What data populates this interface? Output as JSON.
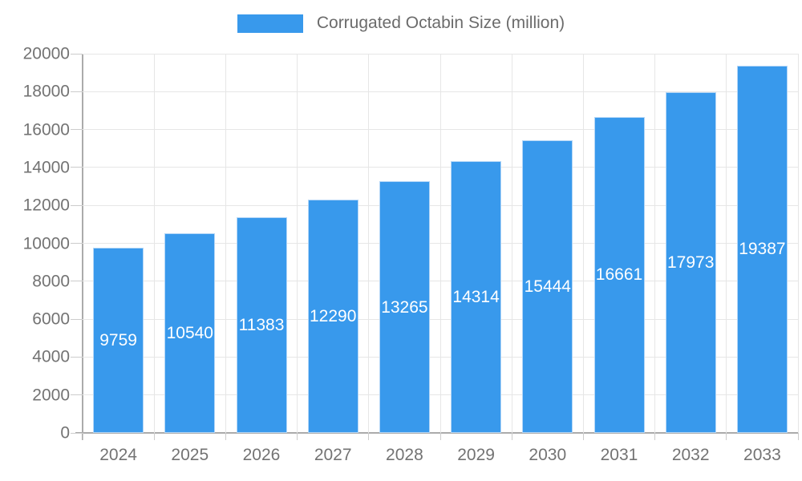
{
  "legend": {
    "label": "Corrugated Octabin Size (million)"
  },
  "chart_data": {
    "type": "bar",
    "title": "Corrugated Octabin Size (million)",
    "categories": [
      "2024",
      "2025",
      "2026",
      "2027",
      "2028",
      "2029",
      "2030",
      "2031",
      "2032",
      "2033"
    ],
    "values": [
      9759,
      10540,
      11383,
      12290,
      13265,
      14314,
      15444,
      16661,
      17973,
      19387
    ],
    "xlabel": "",
    "ylabel": "",
    "ylim": [
      0,
      20000
    ],
    "ytick_step": 2000,
    "grid": true,
    "legend_position": "top",
    "bar_labels_inside": true,
    "colors": {
      "bar": "#3899ec",
      "bar_border": "#b3d6f7",
      "bar_label": "#ffffff",
      "grid": "#e6e6e6",
      "axis": "#ababab",
      "tick": "#cccccc",
      "label": "#737373",
      "legend_text": "#6b6b6b",
      "background": "#ffffff"
    }
  }
}
